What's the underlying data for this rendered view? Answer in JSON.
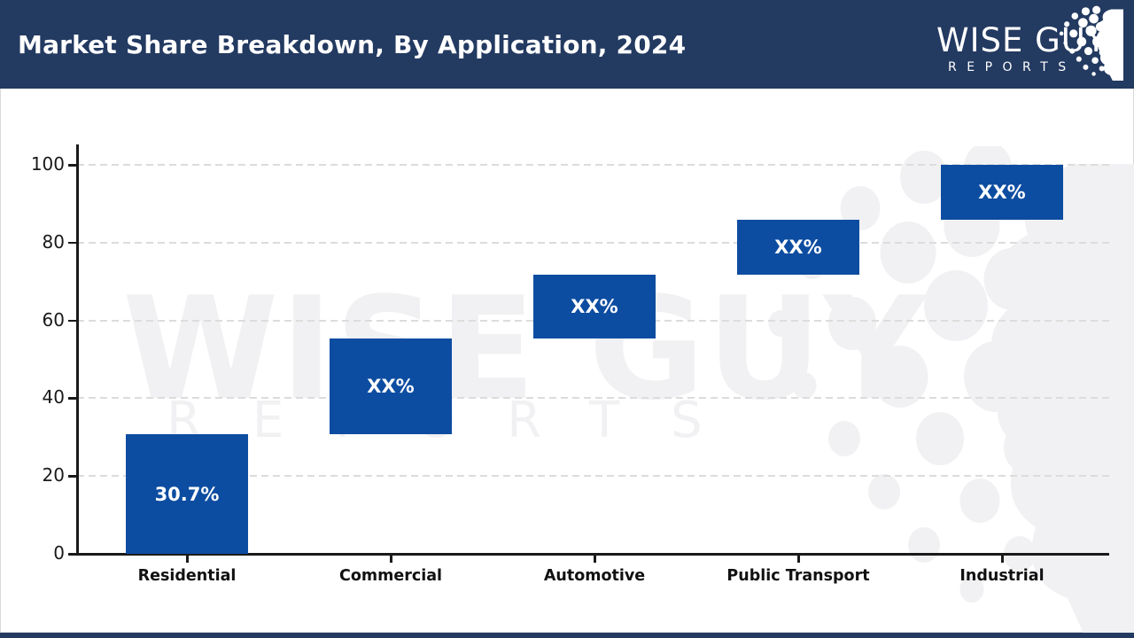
{
  "header": {
    "title": "Market Share Breakdown, By Application, 2024",
    "logo": {
      "line1": "WISE GUY",
      "line2": "REPORTS"
    }
  },
  "watermark": {
    "line1": "WISE GUY",
    "line2": "REPORTS"
  },
  "colors": {
    "header_bg": "#233a61",
    "footer_bg": "#233a61",
    "bar": "#0d4da1",
    "bar_label": "#ffffff",
    "grid": "#dcdcdc",
    "axis": "#1a1a1a",
    "watermark": "#f1f1f3"
  },
  "chart_data": {
    "type": "bar",
    "subtype": "waterfall",
    "title": "Market Share Breakdown, By Application, 2024",
    "xlabel": "",
    "ylabel": "",
    "categories": [
      "Residential",
      "Commercial",
      "Automotive",
      "Public Transport",
      "Industrial"
    ],
    "segments": [
      {
        "category": "Residential",
        "start": 0,
        "end": 30.7,
        "label": "30.7%"
      },
      {
        "category": "Commercial",
        "start": 30.7,
        "end": 55.3,
        "label": "XX%"
      },
      {
        "category": "Automotive",
        "start": 55.3,
        "end": 71.7,
        "label": "XX%"
      },
      {
        "category": "Public Transport",
        "start": 71.7,
        "end": 85.9,
        "label": "XX%"
      },
      {
        "category": "Industrial",
        "start": 85.9,
        "end": 100,
        "label": "XX%"
      }
    ],
    "y_ticks": [
      0,
      20,
      40,
      60,
      80,
      100
    ],
    "ylim": [
      0,
      105
    ],
    "grid": "horizontal-dashed",
    "legend": "none",
    "bar_color": "#0d4da1",
    "value_label_color": "#ffffff"
  }
}
